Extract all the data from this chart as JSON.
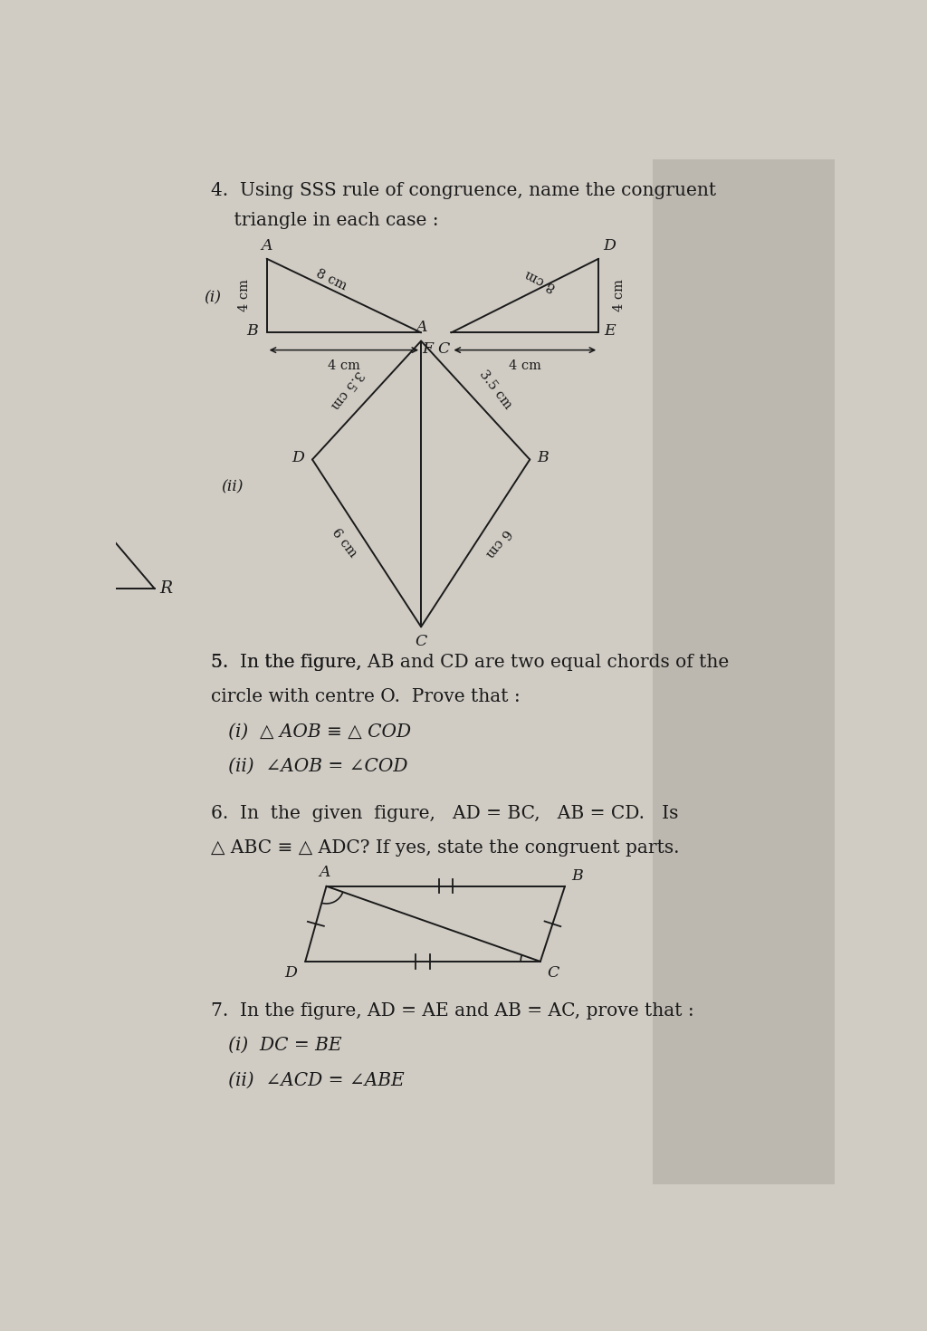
{
  "bg_color": "#b8b8b8",
  "paper_color": "#d0ccc4",
  "right_strip_color": "#8a8a7a",
  "title4_line1": "4.  Using SSS rule of congruence, name the congruent",
  "title4_line2": "    triangle in each case :",
  "label_i": "(i)",
  "label_ii": "(ii)",
  "q5_lines": [
    [
      "5.  In the figure, ",
      "AB",
      " and ",
      "CD",
      " are two equal chords of the"
    ],
    [
      "circle with centre ",
      "O",
      ".  Prove that :"
    ],
    [
      " (i)  △ AOB ≡ △ COD"
    ],
    [
      " (ii)  ∠AOB = ∠COD"
    ]
  ],
  "q6_lines": [
    [
      "6.  In  the  given  figure,   ",
      "AD",
      " = ",
      "BC",
      ",   ",
      "AB",
      " = ",
      "CD",
      ".   Is"
    ],
    [
      "△ ",
      "ABC",
      " ≡ △ ",
      "ADC",
      "? If yes, state the congruent parts."
    ]
  ],
  "q7_lines": [
    [
      "7.  In the figure, ",
      "AD",
      " = ",
      "AE",
      " and ",
      "AB",
      " = ",
      "AC",
      ", prove that :"
    ],
    [
      " (i)  DC = BE"
    ],
    [
      " (ii)  ∠ACD = ∠ABE"
    ]
  ],
  "font_size_main": 14.5,
  "font_size_label": 12.5,
  "line_color": "#1a1a1a",
  "text_color": "#1a1a1a"
}
